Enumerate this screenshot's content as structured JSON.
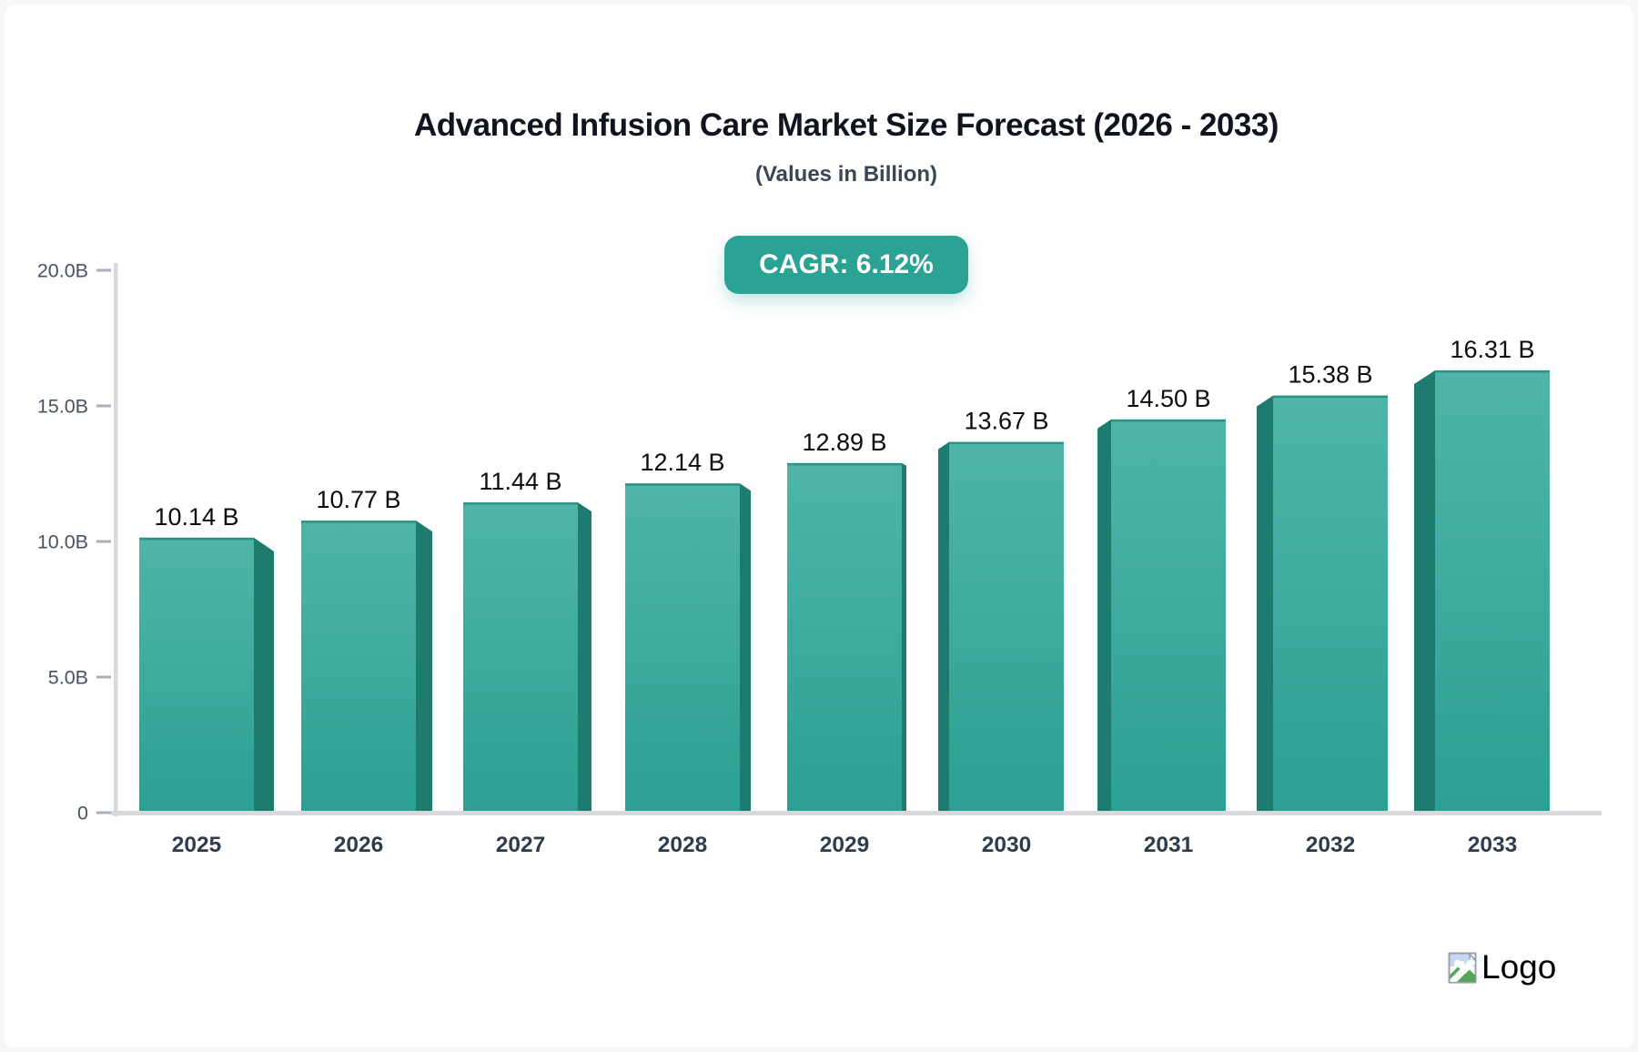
{
  "page": {
    "title": "Advanced Infusion Care Market Size Forecast (2026 - 2033)",
    "subtitle": "(Values in Billion)",
    "cagr_badge_label": "CAGR: 6.12%",
    "logo_text": "Logo"
  },
  "colors": {
    "bar_front_top": "#4fb5a8",
    "bar_front_bottom": "#2ba093",
    "bar_top_edge": "#2f9183",
    "bar_side": "#1e7c6f",
    "badge_bg": "#2aa294",
    "axis_line": "#d7d9dd",
    "tick_dash": "#aab0b9",
    "tick_text": "#49525f",
    "year_text": "#2f3c4c",
    "value_text": "#0c0c0c"
  },
  "chart_data": {
    "type": "bar",
    "title": "Advanced Infusion Care Market Size Forecast (2026 - 2033)",
    "subtitle": "(Values in Billion)",
    "unit": "Billion",
    "cagr_percent": "6.12%",
    "style": "3d-column, teal gradient, perspective vanishing point at center bar",
    "categories": [
      "2025",
      "2026",
      "2027",
      "2028",
      "2029",
      "2030",
      "2031",
      "2032",
      "2033"
    ],
    "values": [
      10.14,
      10.77,
      11.44,
      12.14,
      12.89,
      13.67,
      14.5,
      15.38,
      16.31
    ],
    "value_labels": [
      "10.14 B",
      "10.77 B",
      "11.44 B",
      "12.14 B",
      "12.89 B",
      "13.67 B",
      "14.50 B",
      "15.38 B",
      "16.31 B"
    ],
    "xlabel": "",
    "ylabel": "",
    "ylim": [
      0,
      20
    ],
    "yaxis_ticks": [
      {
        "value": 20,
        "label": "20.0B"
      },
      {
        "value": 15,
        "label": "15.0B"
      },
      {
        "value": 10,
        "label": "10.0B"
      },
      {
        "value": 5,
        "label": "5.0B"
      },
      {
        "value": 0,
        "label": "0"
      }
    ],
    "grid": false,
    "legend": "none"
  }
}
